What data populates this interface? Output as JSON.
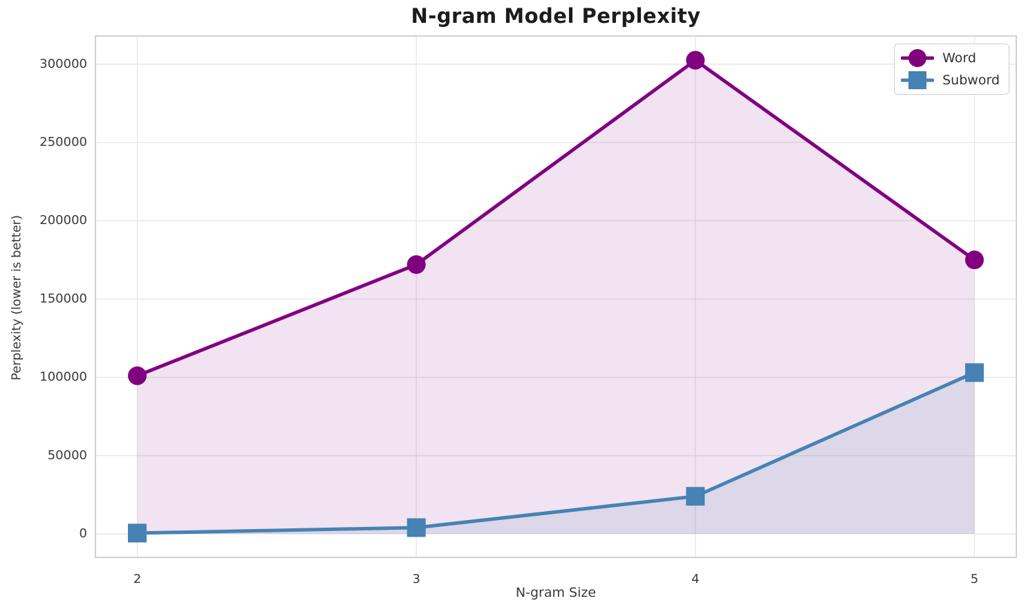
{
  "title": "N-gram Model Perplexity",
  "chart_data": {
    "type": "line",
    "title": "N-gram Model Perplexity",
    "xlabel": "N-gram Size",
    "ylabel": "Perplexity (lower is better)",
    "x": [
      2,
      3,
      4,
      5
    ],
    "series": [
      {
        "name": "Word",
        "marker": "circle",
        "color": "#800080",
        "fill": "rgba(128,0,128,0.11)",
        "values": [
          101000,
          172000,
          302500,
          175000
        ]
      },
      {
        "name": "Subword",
        "marker": "square",
        "color": "#4682b4",
        "fill": "rgba(70,130,180,0.12)",
        "values": [
          500,
          4000,
          24000,
          103000
        ]
      }
    ],
    "x_ticks": [
      "2",
      "3",
      "4",
      "5"
    ],
    "y_ticks": [
      0,
      50000,
      100000,
      150000,
      200000,
      250000,
      300000
    ],
    "y_tick_labels": [
      "0",
      "50000",
      "100000",
      "150000",
      "200000",
      "250000",
      "300000"
    ],
    "xlim": [
      1.85,
      5.15
    ],
    "ylim": [
      -15000,
      318000
    ],
    "grid": true,
    "fill_baseline": 0,
    "legend_position": "upper right"
  },
  "colors": {
    "word": "#800080",
    "subword": "#4682b4",
    "grid": "#e7e7e7",
    "spine": "#cccccc",
    "tick_text": "#3a3a3a",
    "title_text": "#1c1c1c",
    "legend_border": "#cccccc",
    "background": "#ffffff"
  }
}
